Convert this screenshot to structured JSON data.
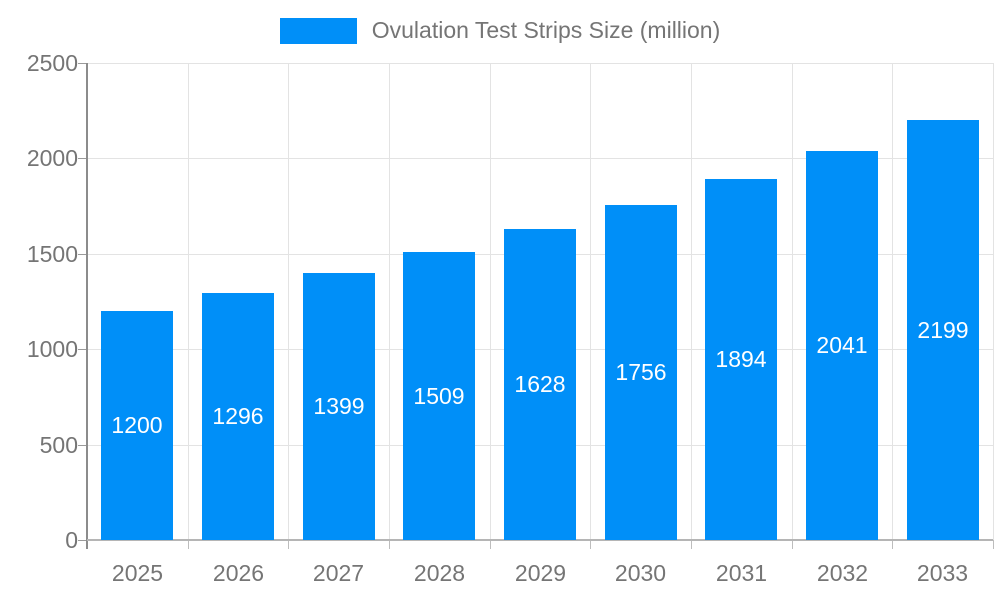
{
  "legend": {
    "label": "Ovulation Test Strips Size (million)",
    "swatch_color": "#008ff8"
  },
  "chart_data": {
    "type": "bar",
    "title": "Ovulation Test Strips Size (million)",
    "categories": [
      "2025",
      "2026",
      "2027",
      "2028",
      "2029",
      "2030",
      "2031",
      "2032",
      "2033"
    ],
    "values": [
      1200,
      1296,
      1399,
      1509,
      1628,
      1756,
      1894,
      2041,
      2199
    ],
    "xlabel": "",
    "ylabel": "",
    "ylim": [
      0,
      2500
    ],
    "yticks": [
      0,
      500,
      1000,
      1500,
      2000,
      2500
    ],
    "grid": true,
    "legend_position": "top-center",
    "bar_color": "#008ff8",
    "data_label_color": "#ffffff",
    "tick_label_color": "#757575",
    "gridline_color": "#e3e3e3",
    "y_axis_color": "#8c8c8c",
    "x_axis_color": "#b5b5b5"
  }
}
